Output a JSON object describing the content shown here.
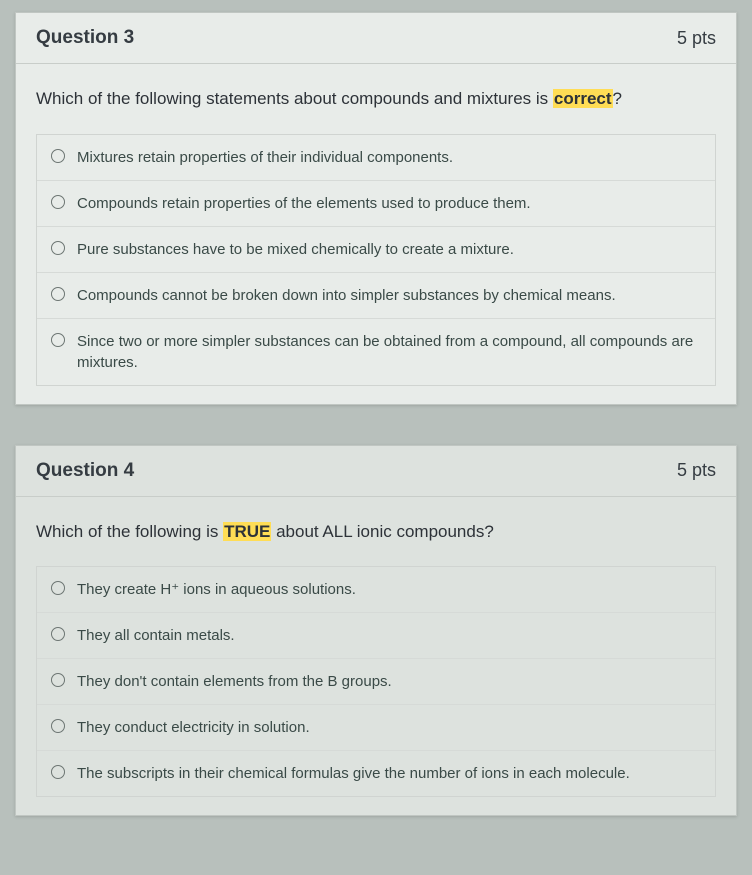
{
  "highlight_color": "#ffdd55",
  "questions": [
    {
      "number": "Question 3",
      "points": "5 pts",
      "prompt_pre": "Which of the following statements about compounds and mixtures is ",
      "prompt_hl": "correct",
      "prompt_post": "?",
      "answers": [
        "Mixtures retain properties of their individual components.",
        "Compounds retain properties of the elements used to produce them.",
        "Pure substances have to be mixed chemically to create a mixture.",
        "Compounds cannot be broken down into simpler substances by chemical means.",
        "Since two or more simpler substances can be obtained from a compound, all compounds are mixtures."
      ]
    },
    {
      "number": "Question 4",
      "points": "5 pts",
      "prompt_pre": "Which of the following is ",
      "prompt_hl": "TRUE",
      "prompt_post": " about ALL ionic compounds?",
      "answers": [
        "They create H⁺ ions in aqueous solutions.",
        "They all contain metals.",
        "They don't contain elements from the B groups.",
        "They conduct electricity in solution.",
        "The subscripts in their chemical formulas give the number of ions in each molecule."
      ]
    }
  ]
}
